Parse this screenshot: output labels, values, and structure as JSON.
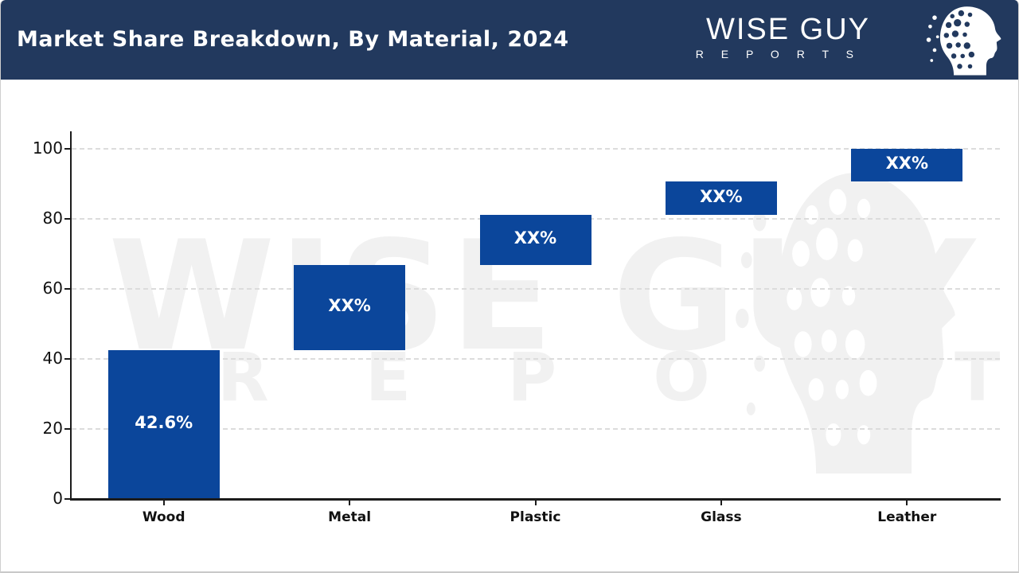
{
  "header": {
    "title": "Market Share Breakdown, By Material, 2024",
    "background_color": "#22395E",
    "logo": {
      "line1": "WISE GUY",
      "line2": "R E P O R T S",
      "head_icon": "dotted-head-profile"
    }
  },
  "watermark": {
    "line1": "WISE GUY",
    "line2": "R E P O R T S",
    "head_icon": "dotted-head-profile"
  },
  "chart_data": {
    "type": "bar",
    "subtype": "waterfall",
    "title": "Market Share Breakdown, By Material, 2024",
    "xlabel": "",
    "ylabel": "",
    "categories": [
      "Wood",
      "Metal",
      "Plastic",
      "Glass",
      "Leather"
    ],
    "segments": [
      {
        "category": "Wood",
        "start": 0,
        "end": 42.6,
        "value": 42.6,
        "label": "42.6%"
      },
      {
        "category": "Metal",
        "start": 42.6,
        "end": 66.9,
        "value": 24.3,
        "label": "XX%"
      },
      {
        "category": "Plastic",
        "start": 66.9,
        "end": 81.1,
        "value": 14.2,
        "label": "XX%"
      },
      {
        "category": "Glass",
        "start": 81.1,
        "end": 90.7,
        "value": 9.6,
        "label": "XX%"
      },
      {
        "category": "Leather",
        "start": 90.7,
        "end": 100,
        "value": 9.3,
        "label": "XX%"
      }
    ],
    "y_ticks": [
      0,
      20,
      40,
      60,
      80,
      100
    ],
    "ylim": [
      0,
      105
    ],
    "grid": "horizontal-dashed",
    "legend": "none",
    "bar_color": "#0B469B",
    "label_color": "#FFFFFF"
  }
}
